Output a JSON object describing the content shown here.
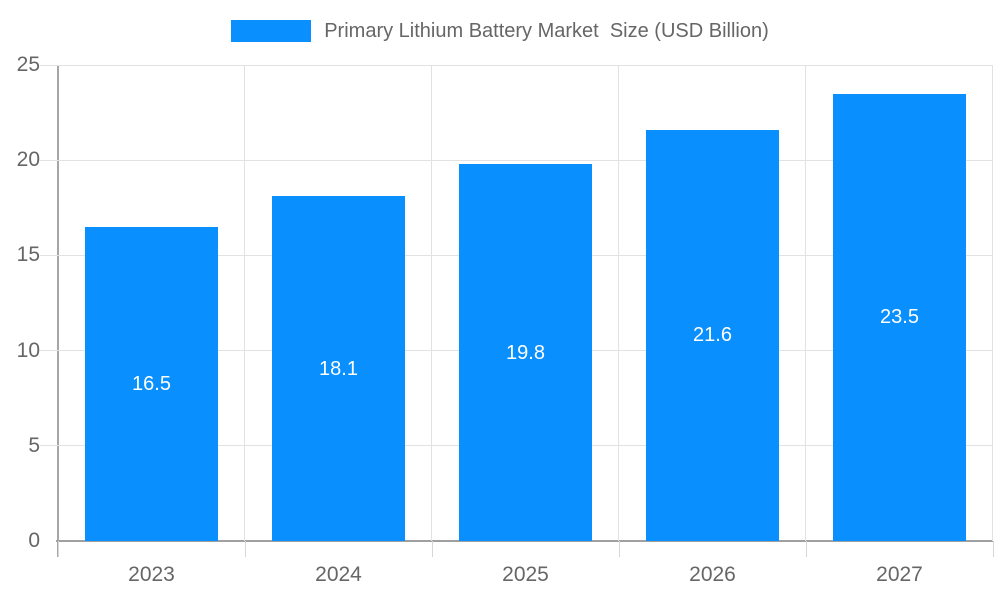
{
  "legend": {
    "label": "Primary Lithium Battery Market  Size (USD Billion)"
  },
  "chart_data": {
    "type": "bar",
    "title": "Primary Lithium Battery Market  Size (USD Billion)",
    "categories": [
      "2023",
      "2024",
      "2025",
      "2026",
      "2027"
    ],
    "values": [
      16.5,
      18.1,
      19.8,
      21.6,
      23.5
    ],
    "data_labels": [
      "16.5",
      "18.1",
      "19.8",
      "21.6",
      "23.5"
    ],
    "xlabel": "",
    "ylabel": "",
    "ylim": [
      0,
      25
    ],
    "yticks": [
      0,
      5,
      10,
      15,
      20,
      25
    ],
    "ytick_labels": [
      "0",
      "5",
      "10",
      "15",
      "20",
      "25"
    ],
    "grid": true,
    "legend_position": "top"
  },
  "colors": {
    "bar": "#0a8fff",
    "grid": "#e2e2e2",
    "axis": "#a0a0a0",
    "tick": "#d6d6d6",
    "text": "#666666",
    "bar_label": "#ffffff",
    "background": "#ffffff"
  }
}
